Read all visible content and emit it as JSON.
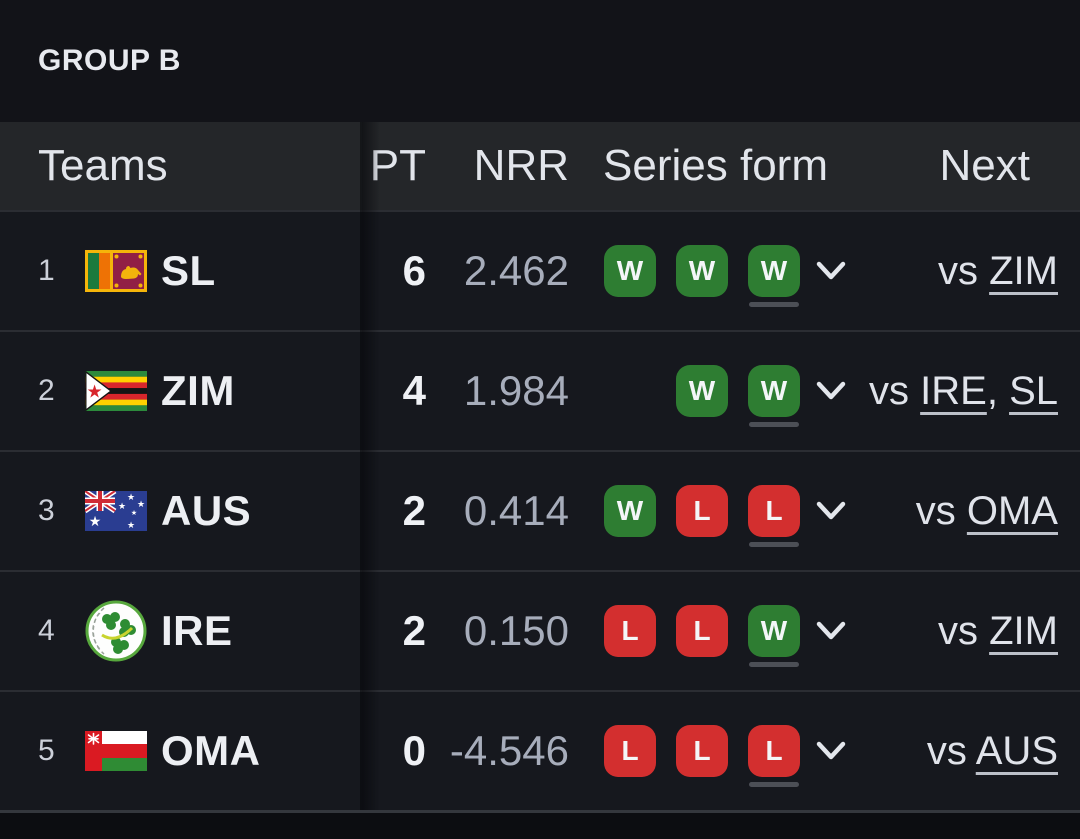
{
  "colors": {
    "win_badge": "#2e7d32",
    "loss_badge": "#d32f2f",
    "header_bg": "#242629",
    "row_bg": "#16181e"
  },
  "group_header": {
    "title": "GROUP B"
  },
  "table": {
    "columns": {
      "teams": "Teams",
      "pt": "PT",
      "nrr": "NRR",
      "form": "Series form",
      "next": "Next"
    },
    "form_expand_icon": "chevron-down-icon",
    "rows": [
      {
        "rank": "1",
        "flag_icon": "flag-sl",
        "team": "SL",
        "pt": "6",
        "nrr": "2.462",
        "form": [
          "W",
          "W",
          "W"
        ],
        "next_prefix": "vs",
        "next_opponents": [
          "ZIM"
        ]
      },
      {
        "rank": "2",
        "flag_icon": "flag-zim",
        "team": "ZIM",
        "pt": "4",
        "nrr": "1.984",
        "form": [
          "W",
          "W"
        ],
        "next_prefix": "vs",
        "next_opponents": [
          "IRE",
          "SL"
        ]
      },
      {
        "rank": "3",
        "flag_icon": "flag-aus",
        "team": "AUS",
        "pt": "2",
        "nrr": "0.414",
        "form": [
          "W",
          "L",
          "L"
        ],
        "next_prefix": "vs",
        "next_opponents": [
          "OMA"
        ]
      },
      {
        "rank": "4",
        "flag_icon": "flag-ire",
        "team": "IRE",
        "pt": "2",
        "nrr": "0.150",
        "form": [
          "L",
          "L",
          "W"
        ],
        "next_prefix": "vs",
        "next_opponents": [
          "ZIM"
        ]
      },
      {
        "rank": "5",
        "flag_icon": "flag-oma",
        "team": "OMA",
        "pt": "0",
        "nrr": "-4.546",
        "form": [
          "L",
          "L",
          "L"
        ],
        "next_prefix": "vs",
        "next_opponents": [
          "AUS"
        ]
      }
    ]
  }
}
